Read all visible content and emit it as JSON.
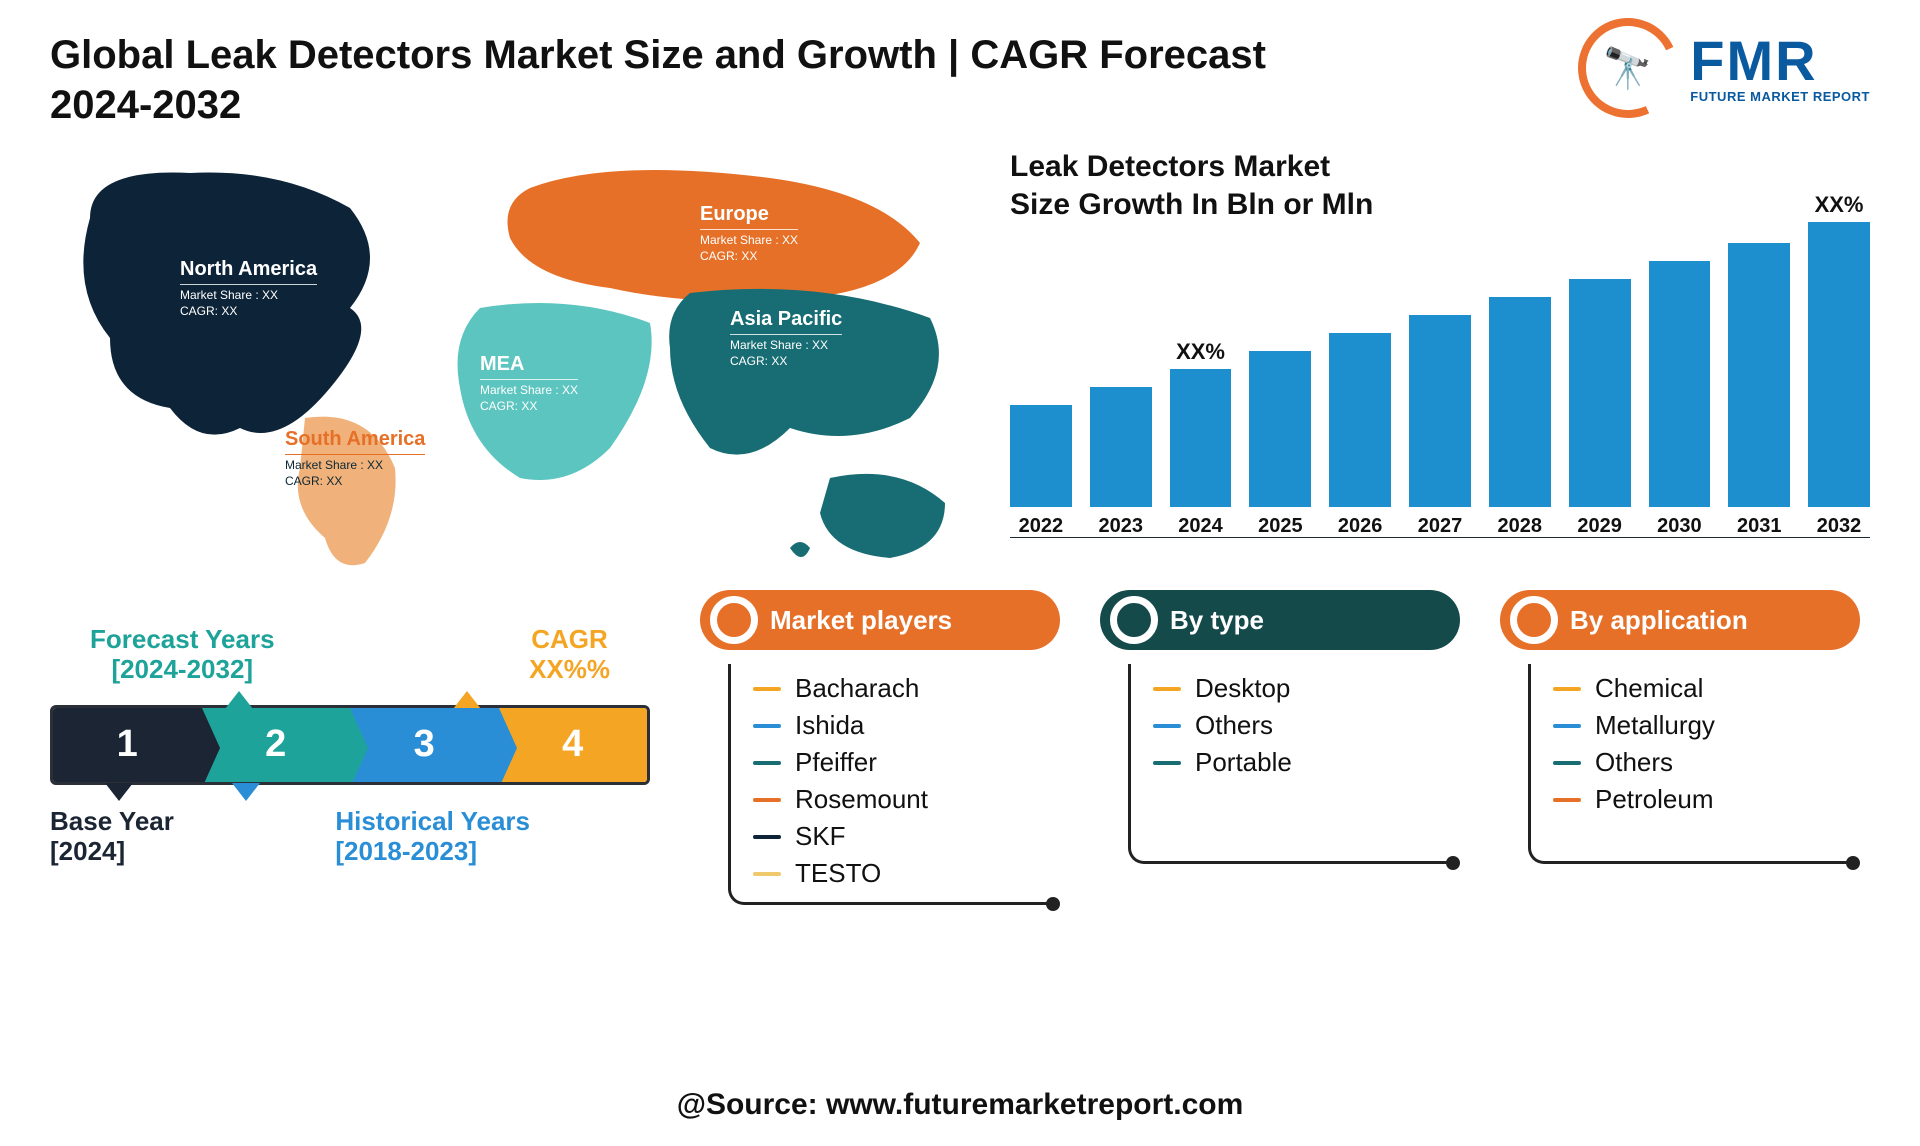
{
  "title": "Global Leak Detectors  Market Size and Growth | CAGR Forecast 2024-2032",
  "logo": {
    "abbr": "FMR",
    "sub": "FUTURE MARKET REPORT"
  },
  "source": "@Source: www.futuremarketreport.com",
  "map": {
    "regions": [
      {
        "key": "na",
        "name": "North America",
        "share": "Market Share : XX",
        "cagr": "CAGR: XX",
        "color": "#0d2338"
      },
      {
        "key": "sa",
        "name": "South America",
        "share": "Market Share : XX",
        "cagr": "CAGR: XX",
        "color": "#f0b27a"
      },
      {
        "key": "eu",
        "name": "Europe",
        "share": "Market Share : XX",
        "cagr": "CAGR: XX",
        "color": "#e67027"
      },
      {
        "key": "mea",
        "name": "MEA",
        "share": "Market Share : XX",
        "cagr": "CAGR: XX",
        "color": "#5cc5c0"
      },
      {
        "key": "ap",
        "name": "Asia Pacific",
        "share": "Market Share : XX",
        "cagr": "CAGR: XX",
        "color": "#176d73"
      }
    ]
  },
  "chart": {
    "title": "Leak Detectors  Market Size Growth In Bln or Mln",
    "years": [
      "2022",
      "2023",
      "2024",
      "2025",
      "2026",
      "2027",
      "2028",
      "2029",
      "2030",
      "2031",
      "2032"
    ],
    "values": [
      34,
      40,
      46,
      52,
      58,
      64,
      70,
      76,
      82,
      88,
      95
    ],
    "annotations": [
      {
        "index": 2,
        "text": "XX%"
      },
      {
        "index": 10,
        "text": "XX%"
      }
    ],
    "bar_color": "#1d8fcf",
    "ylim": [
      0,
      100
    ]
  },
  "timeline": {
    "forecast_label": "Forecast Years",
    "forecast_range": "[2024-2032]",
    "cagr_label": "CAGR",
    "cagr_value": "XX%%",
    "segments": [
      "1",
      "2",
      "3",
      "4"
    ],
    "seg_colors": [
      "#1b2533",
      "#1ea39a",
      "#2a8ed6",
      "#f4a524"
    ],
    "base_label": "Base Year",
    "base_value": "[2024]",
    "hist_label": "Historical Years",
    "hist_value": "[2018-2023]"
  },
  "categories": [
    {
      "title": "Market players",
      "pill_color": "orange",
      "items": [
        {
          "label": "Bacharach",
          "color": "#f4a524"
        },
        {
          "label": "Ishida",
          "color": "#2a8ed6"
        },
        {
          "label": "Pfeiffer",
          "color": "#176d73"
        },
        {
          "label": "Rosemount",
          "color": "#e67027"
        },
        {
          "label": "SKF",
          "color": "#0d2338"
        },
        {
          "label": "TESTO",
          "color": "#f0c96c"
        }
      ]
    },
    {
      "title": "By type",
      "pill_color": "teal",
      "items": [
        {
          "label": "Desktop",
          "color": "#f4a524"
        },
        {
          "label": "Others",
          "color": "#2a8ed6"
        },
        {
          "label": "Portable",
          "color": "#176d73"
        }
      ]
    },
    {
      "title": "By application",
      "pill_color": "orange",
      "items": [
        {
          "label": "Chemical",
          "color": "#f4a524"
        },
        {
          "label": "Metallurgy",
          "color": "#2a8ed6"
        },
        {
          "label": "Others",
          "color": "#176d73"
        },
        {
          "label": "Petroleum",
          "color": "#e67027"
        }
      ]
    }
  ]
}
